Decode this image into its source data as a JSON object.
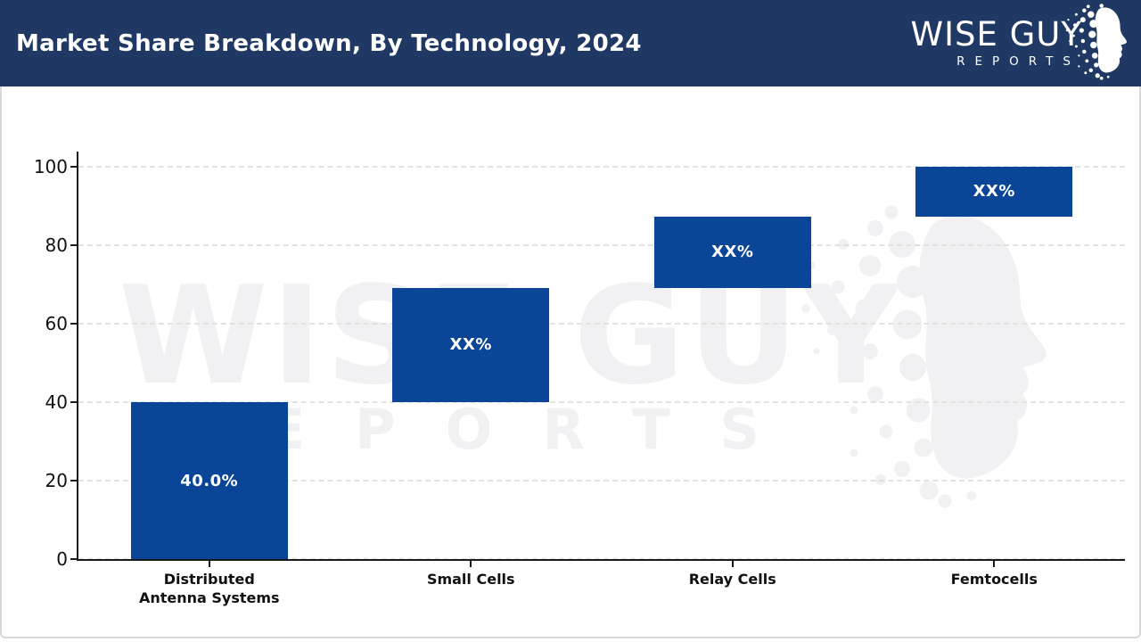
{
  "header": {
    "title": "Market Share Breakdown, By Technology, 2024"
  },
  "brand": {
    "line1": "WISE GUY",
    "line2": "REPORTS"
  },
  "watermark": {
    "line1": "WISE GUY",
    "line2": "REPORTS"
  },
  "chart_data": {
    "type": "bar",
    "subtype": "waterfall",
    "title": "Market Share Breakdown, By Technology, 2024",
    "categories": [
      "Distributed\nAntenna Systems",
      "Small Cells",
      "Relay Cells",
      "Femtocells"
    ],
    "segments": [
      {
        "category": "Distributed Antenna Systems",
        "start": 0,
        "end": 40,
        "label": "40.0%"
      },
      {
        "category": "Small Cells",
        "start": 40,
        "end": 69.1,
        "label": "XX%"
      },
      {
        "category": "Relay Cells",
        "start": 69.1,
        "end": 87.3,
        "label": "XX%"
      },
      {
        "category": "Femtocells",
        "start": 87.3,
        "end": 100,
        "label": "XX%"
      }
    ],
    "y_ticks": [
      0,
      20,
      40,
      60,
      80,
      100
    ],
    "ylim": [
      0,
      104
    ],
    "xlabel": "",
    "ylabel": "",
    "grid": true,
    "legend": false,
    "bar_color": "#0b4598",
    "bar_label_color": "#ffffff",
    "header_color": "#203864"
  }
}
